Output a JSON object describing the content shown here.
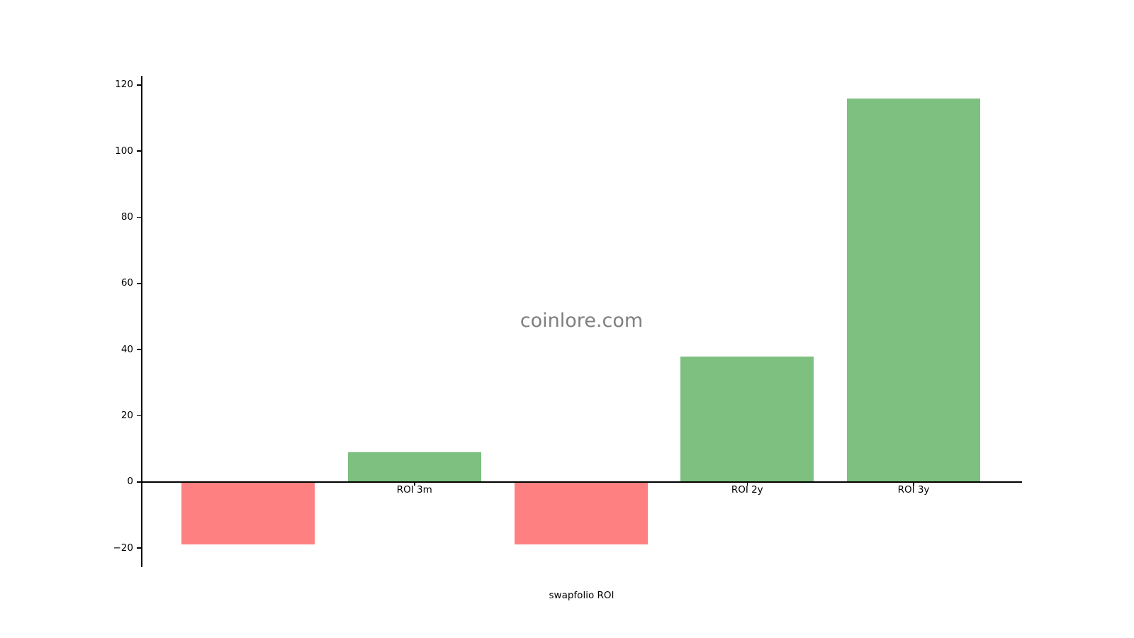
{
  "chart_data": {
    "type": "bar",
    "title": "",
    "xlabel": "swapfolio ROI",
    "ylabel": "",
    "watermark": "coinlore.com",
    "categories": [
      "",
      "ROI 3m",
      "",
      "ROI 2y",
      "ROI 3y"
    ],
    "values": [
      -19,
      9,
      -19,
      38,
      116
    ],
    "bar_colors": [
      "#ff8080",
      "#7dc080",
      "#ff8080",
      "#7dc080",
      "#7dc080"
    ],
    "yticks": [
      -20,
      0,
      20,
      40,
      60,
      80,
      100,
      120
    ],
    "ylim": [
      -25.75,
      122.75
    ],
    "grid": false,
    "legend": null,
    "layout": {
      "axis_color": "#000000",
      "watermark_color": "#7f7f7f",
      "background_color": "#ffffff",
      "positive_bar_color": "#7dc080",
      "negative_bar_color": "#ff8080"
    }
  }
}
